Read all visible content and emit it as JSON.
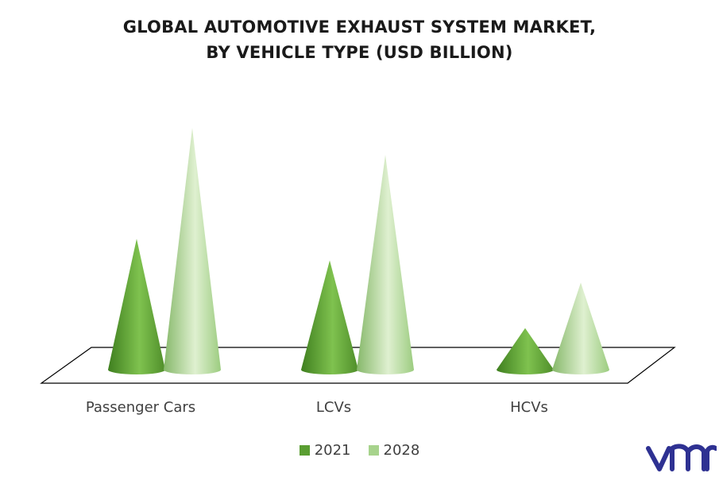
{
  "title_line1": "GLOBAL AUTOMOTIVE EXHAUST SYSTEM MARKET,",
  "title_line2": "BY VEHICLE TYPE (USD BILLION)",
  "colors": {
    "s2021": "#5a9e32",
    "s2028": "#a7d38c",
    "brand": "#2e3192"
  },
  "logo_text": "vmr",
  "chart_data": {
    "type": "bar",
    "style": "3d-cone",
    "categories": [
      "Passenger Cars",
      "LCVs",
      "HCVs"
    ],
    "series": [
      {
        "name": "2021",
        "values": [
          17,
          14.2,
          5.4
        ]
      },
      {
        "name": "2028",
        "values": [
          31.4,
          27.9,
          11.3
        ]
      }
    ],
    "ylim": [
      0,
      32
    ],
    "grid": false,
    "legend": "bottom-center"
  }
}
